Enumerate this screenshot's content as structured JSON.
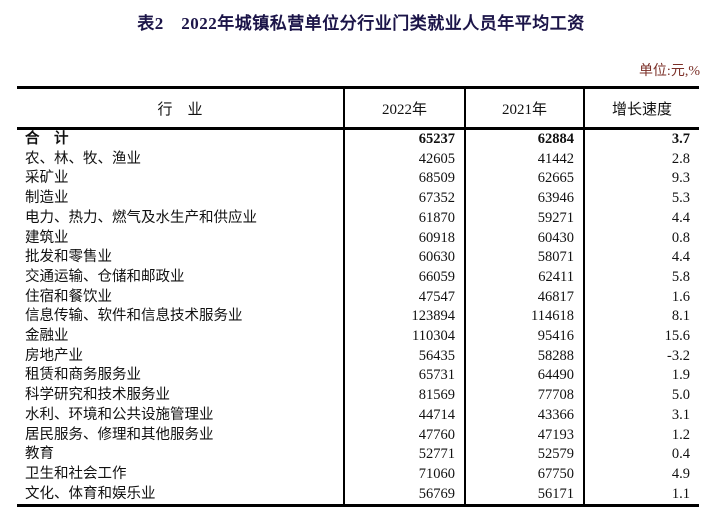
{
  "title": "表2　2022年城镇私营单位分行业门类就业人员年平均工资",
  "unit_note": "单位:元,%",
  "colors": {
    "title_text": "#1b1448",
    "unit_note_text": "#7b2f27",
    "table_text": "#111111",
    "border": "#000000"
  },
  "table": {
    "headers": [
      "行　业",
      "2022年",
      "2021年",
      "增长速度"
    ],
    "rows": [
      {
        "industry": "合　计",
        "v2022": "65237",
        "v2021": "62884",
        "growth": "3.7",
        "bold": true
      },
      {
        "industry": "农、林、牧、渔业",
        "v2022": "42605",
        "v2021": "41442",
        "growth": "2.8",
        "bold": false
      },
      {
        "industry": "采矿业",
        "v2022": "68509",
        "v2021": "62665",
        "growth": "9.3",
        "bold": false
      },
      {
        "industry": "制造业",
        "v2022": "67352",
        "v2021": "63946",
        "growth": "5.3",
        "bold": false
      },
      {
        "industry": "电力、热力、燃气及水生产和供应业",
        "v2022": "61870",
        "v2021": "59271",
        "growth": "4.4",
        "bold": false
      },
      {
        "industry": "建筑业",
        "v2022": "60918",
        "v2021": "60430",
        "growth": "0.8",
        "bold": false
      },
      {
        "industry": "批发和零售业",
        "v2022": "60630",
        "v2021": "58071",
        "growth": "4.4",
        "bold": false
      },
      {
        "industry": "交通运输、仓储和邮政业",
        "v2022": "66059",
        "v2021": "62411",
        "growth": "5.8",
        "bold": false
      },
      {
        "industry": "住宿和餐饮业",
        "v2022": "47547",
        "v2021": "46817",
        "growth": "1.6",
        "bold": false
      },
      {
        "industry": "信息传输、软件和信息技术服务业",
        "v2022": "123894",
        "v2021": "114618",
        "growth": "8.1",
        "bold": false
      },
      {
        "industry": "金融业",
        "v2022": "110304",
        "v2021": "95416",
        "growth": "15.6",
        "bold": false
      },
      {
        "industry": "房地产业",
        "v2022": "56435",
        "v2021": "58288",
        "growth": "-3.2",
        "bold": false
      },
      {
        "industry": "租赁和商务服务业",
        "v2022": "65731",
        "v2021": "64490",
        "growth": "1.9",
        "bold": false
      },
      {
        "industry": "科学研究和技术服务业",
        "v2022": "81569",
        "v2021": "77708",
        "growth": "5.0",
        "bold": false
      },
      {
        "industry": "水利、环境和公共设施管理业",
        "v2022": "44714",
        "v2021": "43366",
        "growth": "3.1",
        "bold": false
      },
      {
        "industry": "居民服务、修理和其他服务业",
        "v2022": "47760",
        "v2021": "47193",
        "growth": "1.2",
        "bold": false
      },
      {
        "industry": "教育",
        "v2022": "52771",
        "v2021": "52579",
        "growth": "0.4",
        "bold": false
      },
      {
        "industry": "卫生和社会工作",
        "v2022": "71060",
        "v2021": "67750",
        "growth": "4.9",
        "bold": false
      },
      {
        "industry": "文化、体育和娱乐业",
        "v2022": "56769",
        "v2021": "56171",
        "growth": "1.1",
        "bold": false
      }
    ]
  }
}
